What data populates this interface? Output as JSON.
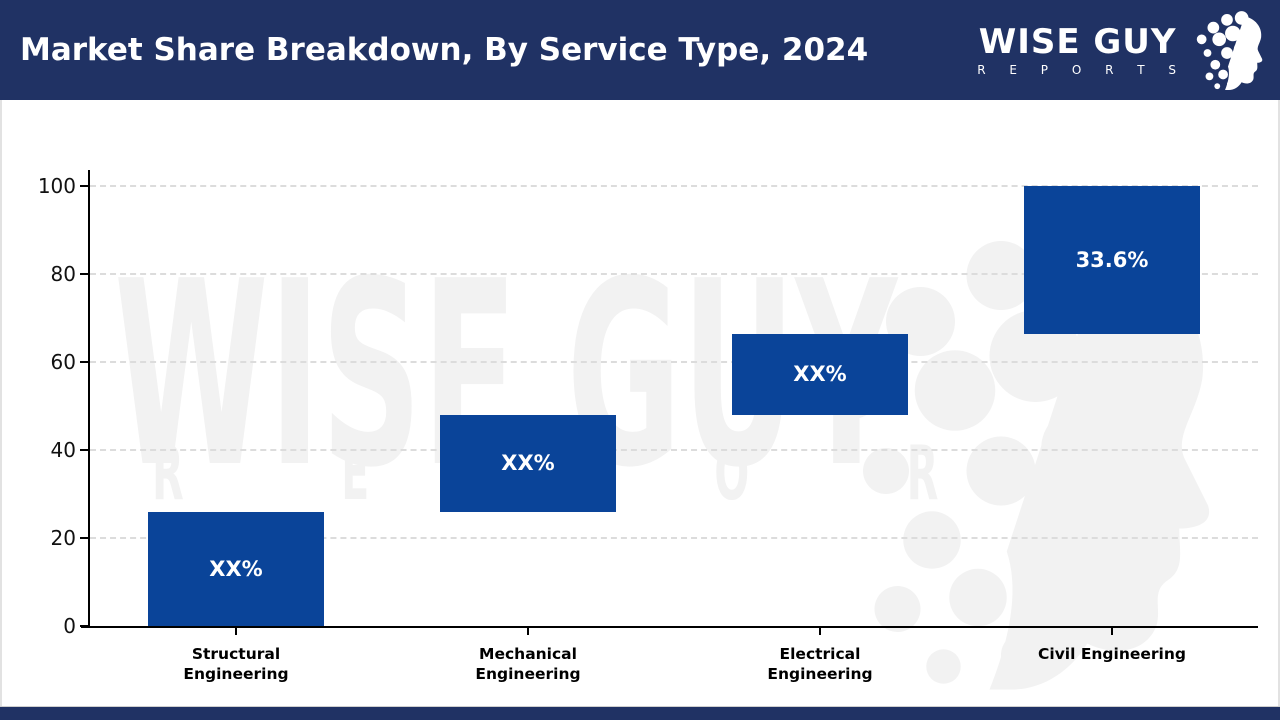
{
  "header": {
    "title": "Market Share Breakdown, By Service Type, 2024",
    "logo": {
      "line1": "WISE GUY",
      "line2": "R E P O R T S"
    }
  },
  "watermark": {
    "line1": "WISE GUY",
    "line2": "R E P O R T S"
  },
  "colors": {
    "header_bg": "#203264",
    "bar": "#0a4499",
    "grid": "#dcdcdc",
    "axis": "#000000",
    "bar_label": "#ffffff",
    "watermark": "#f2f2f2"
  },
  "chart_data": {
    "type": "bar",
    "subtype": "waterfall",
    "title": "Market Share Breakdown, By Service Type, 2024",
    "categories": [
      [
        "Structural",
        "Engineering"
      ],
      [
        "Mechanical",
        "Engineering"
      ],
      [
        "Electrical",
        "Engineering"
      ],
      [
        "Civil Engineering"
      ]
    ],
    "segments": [
      {
        "category": "Structural Engineering",
        "start": 0,
        "end": 26,
        "label": "XX%"
      },
      {
        "category": "Mechanical Engineering",
        "start": 26,
        "end": 48,
        "label": "XX%"
      },
      {
        "category": "Electrical Engineering",
        "start": 48,
        "end": 66.4,
        "label": "XX%"
      },
      {
        "category": "Civil Engineering",
        "start": 66.4,
        "end": 100,
        "label": "33.6%"
      }
    ],
    "ylim": [
      0,
      100
    ],
    "yticks": [
      0,
      20,
      40,
      60,
      80,
      100
    ],
    "grid": "horizontal dashed",
    "legend": false
  }
}
